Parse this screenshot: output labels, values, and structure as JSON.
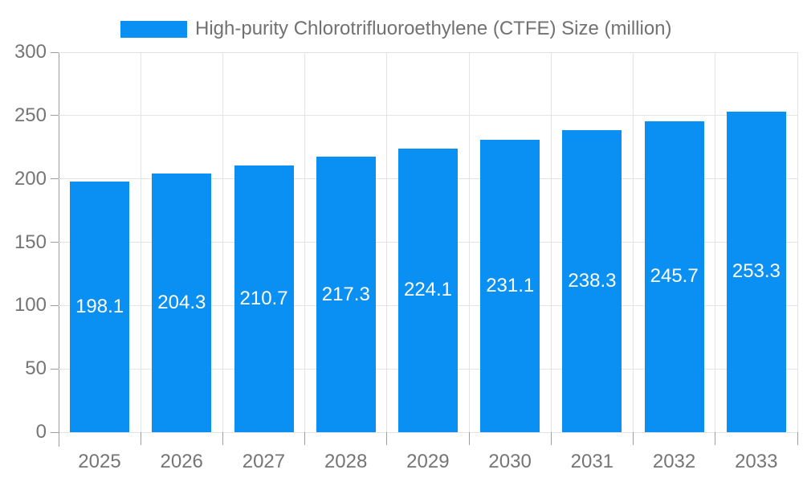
{
  "legend": {
    "label": "High-purity Chlorotrifluoroethylene (CTFE) Size (million)"
  },
  "chart_data": {
    "type": "bar",
    "title": "High-purity Chlorotrifluoroethylene (CTFE) Size (million)",
    "categories": [
      "2025",
      "2026",
      "2027",
      "2028",
      "2029",
      "2030",
      "2031",
      "2032",
      "2033"
    ],
    "values": [
      198.1,
      204.3,
      210.7,
      217.3,
      224.1,
      231.1,
      238.3,
      245.7,
      253.3
    ],
    "value_labels": [
      "198.1",
      "204.3",
      "210.7",
      "217.3",
      "224.1",
      "231.1",
      "238.3",
      "245.7",
      "253.3"
    ],
    "xlabel": "",
    "ylabel": "",
    "ylim": [
      0,
      300
    ],
    "yticks": [
      0,
      50,
      100,
      150,
      200,
      250,
      300
    ],
    "grid": true,
    "legend_position": "top"
  },
  "colors": {
    "bar": "#0a90f2",
    "grid": "#e3e3e3",
    "axis": "#9e9e9e",
    "text": "#757575",
    "value_label": "#ffffff",
    "background": "#ffffff"
  }
}
